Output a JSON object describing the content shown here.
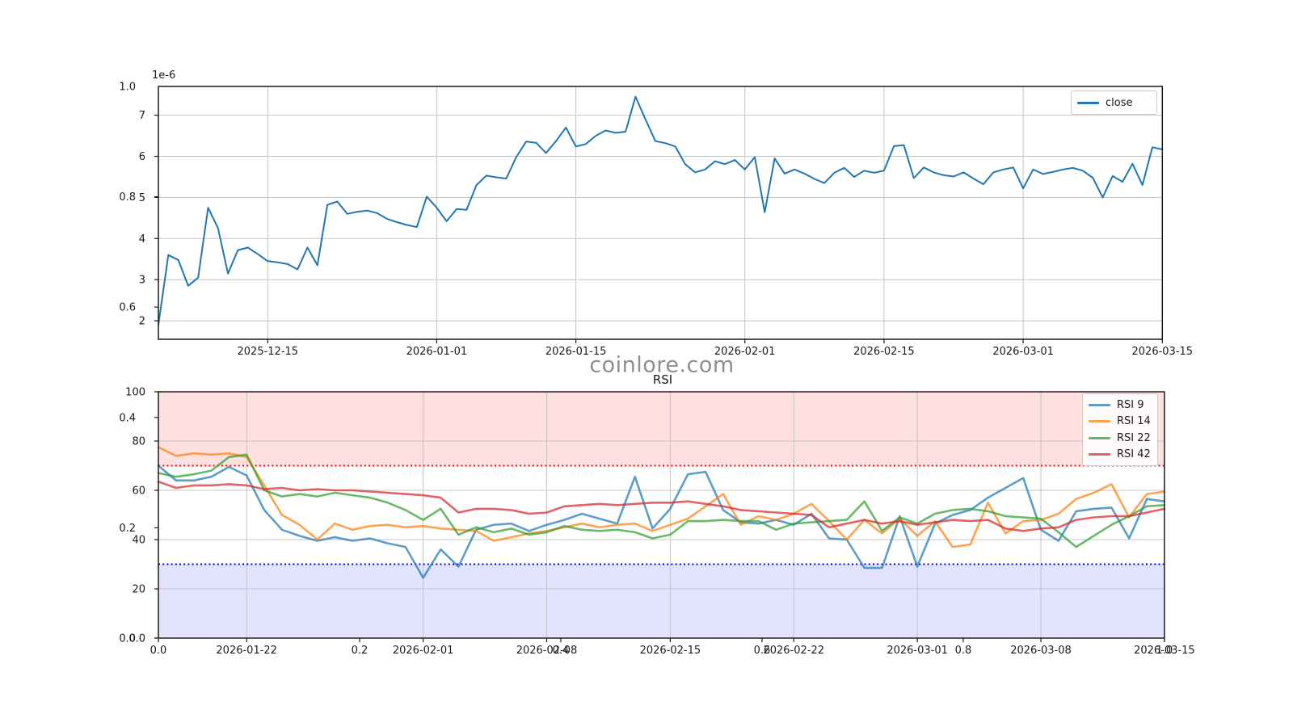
{
  "figure": {
    "watermark": "coinlore.com",
    "background": "#ffffff",
    "grid_color": "#c4c4c4",
    "spine_color": "#1a1a1a"
  },
  "overlay_axis": {
    "x_tick_labels": [
      "0.0",
      "0.2",
      "0.4",
      "0.6",
      "0.8",
      "1.0"
    ],
    "y_tick_labels": [
      "1.0",
      "0.8",
      "0.6",
      "0.4",
      "0.2",
      "0.0"
    ]
  },
  "chart_data": [
    {
      "type": "line",
      "name": "price",
      "title": "",
      "offset_text": "1e-6",
      "legend_position": "upper right",
      "grid": true,
      "x_start_date": "2025-12-04",
      "x_tick_labels": [
        "2025-12-15",
        "2026-01-01",
        "2026-01-15",
        "2026-02-01",
        "2026-02-15",
        "2026-03-01",
        "2026-03-15"
      ],
      "x_tick_days": [
        11,
        28,
        42,
        59,
        73,
        87,
        101
      ],
      "yticks": [
        2,
        3,
        4,
        5,
        6,
        7
      ],
      "ytick_labels": [
        "2",
        "3",
        "4",
        "5",
        "6",
        "7"
      ],
      "ylim": [
        1.55,
        7.7
      ],
      "series": [
        {
          "name": "close",
          "color": "#1f77b4",
          "alpha": 1,
          "width": 2,
          "values": [
            1.9,
            3.6,
            3.48,
            2.85,
            3.05,
            4.75,
            4.25,
            3.15,
            3.72,
            3.78,
            3.62,
            3.45,
            3.42,
            3.38,
            3.25,
            3.78,
            3.35,
            4.82,
            4.9,
            4.6,
            4.65,
            4.68,
            4.62,
            4.48,
            4.4,
            4.33,
            4.28,
            5.02,
            4.75,
            4.42,
            4.72,
            4.7,
            5.3,
            5.53,
            5.49,
            5.46,
            5.98,
            6.36,
            6.33,
            6.08,
            6.37,
            6.7,
            6.24,
            6.3,
            6.5,
            6.63,
            6.57,
            6.6,
            7.45,
            6.9,
            6.37,
            6.32,
            6.24,
            5.81,
            5.61,
            5.68,
            5.88,
            5.81,
            5.91,
            5.68,
            5.98,
            4.64,
            5.95,
            5.58,
            5.68,
            5.58,
            5.45,
            5.35,
            5.6,
            5.72,
            5.5,
            5.65,
            5.6,
            5.65,
            6.25,
            6.27,
            5.47,
            5.73,
            5.61,
            5.54,
            5.51,
            5.61,
            5.46,
            5.32,
            5.61,
            5.68,
            5.73,
            5.22,
            5.68,
            5.57,
            5.62,
            5.68,
            5.72,
            5.65,
            5.48,
            5.0,
            5.52,
            5.38,
            5.82,
            5.3,
            6.22,
            6.17
          ]
        }
      ]
    },
    {
      "type": "line",
      "name": "rsi",
      "title": "RSI",
      "legend_position": "upper right",
      "grid": true,
      "x_start_date": "2026-01-17",
      "x_tick_labels": [
        "2026-01-22",
        "2026-02-01",
        "2026-02-08",
        "2026-02-15",
        "2026-02-22",
        "2026-03-01",
        "2026-03-08",
        "2026-03-15"
      ],
      "x_tick_days": [
        5,
        15,
        22,
        29,
        36,
        43,
        50,
        57
      ],
      "yticks": [
        0,
        20,
        40,
        60,
        80,
        100
      ],
      "ytick_labels": [
        "0.0",
        "20",
        "40",
        "60",
        "80",
        "100"
      ],
      "ylim": [
        0,
        100
      ],
      "overbought_level": 70,
      "oversold_level": 30,
      "overbought_band_color": "rgba(255,0,0,0.12)",
      "oversold_band_color": "rgba(0,0,255,0.11)",
      "overbought_line_color": "#ff0000",
      "oversold_line_color": "#0000ff",
      "series": [
        {
          "name": "RSI 9",
          "color": "#1f77b4",
          "alpha": 0.72,
          "width": 2.6,
          "values": [
            70,
            64,
            64,
            65.5,
            69.5,
            66,
            52,
            44,
            41.5,
            39.5,
            41,
            39.5,
            40.5,
            38.5,
            37,
            24.5,
            36,
            29,
            44,
            46,
            46.5,
            43.5,
            46,
            48,
            50.5,
            48.5,
            46.5,
            65.5,
            44.5,
            52.5,
            66.5,
            67.5,
            52,
            47,
            46.5,
            48,
            46,
            50.5,
            40.5,
            40,
            28.5,
            28.5,
            49.5,
            29,
            46.5,
            50,
            52,
            57,
            61,
            65,
            44,
            39.5,
            51.5,
            52.5,
            53,
            40.5,
            56.5,
            55.5
          ]
        },
        {
          "name": "RSI 14",
          "color": "#ff7f0e",
          "alpha": 0.72,
          "width": 2.6,
          "values": [
            77.5,
            74,
            75,
            74.5,
            75,
            73.5,
            62,
            50,
            46,
            40,
            46.5,
            44,
            45.5,
            46,
            45,
            45.5,
            44.5,
            44,
            43.5,
            39.5,
            41,
            42.5,
            43.5,
            45,
            46.5,
            45,
            46,
            46.5,
            43.5,
            46,
            48.5,
            53.5,
            58.5,
            46,
            49.5,
            48,
            50.5,
            54.5,
            47.5,
            40,
            48,
            42.5,
            48.5,
            41.5,
            47.5,
            37,
            38,
            55,
            42.5,
            47.5,
            48,
            50.5,
            56.5,
            59,
            62.5,
            49,
            58.5,
            59.5
          ]
        },
        {
          "name": "RSI 22",
          "color": "#2ca02c",
          "alpha": 0.72,
          "width": 2.6,
          "values": [
            67,
            65.5,
            66.5,
            68,
            73.5,
            74.5,
            60,
            57.5,
            58.5,
            57.5,
            59,
            58,
            57,
            55,
            52,
            48,
            52.5,
            42,
            45,
            43,
            44.5,
            42,
            43,
            45.5,
            44,
            43.5,
            44,
            43,
            40.5,
            42,
            47.5,
            47.5,
            48,
            47.5,
            47.5,
            44,
            46.5,
            47,
            47.5,
            48,
            55.5,
            43.5,
            49,
            46.5,
            50.5,
            52,
            52.5,
            51.5,
            49.5,
            49,
            48.5,
            43,
            37,
            41.5,
            46,
            49.5,
            53.5,
            54
          ]
        },
        {
          "name": "RSI 42",
          "color": "#d62728",
          "alpha": 0.72,
          "width": 2.6,
          "values": [
            63.5,
            61,
            62,
            62,
            62.5,
            62,
            60.5,
            61,
            60,
            60.5,
            60,
            60,
            59.5,
            59,
            58.5,
            58,
            57,
            51,
            52.5,
            52.5,
            52,
            50.5,
            51,
            53.5,
            54,
            54.5,
            54,
            54.5,
            55,
            55,
            55.5,
            54.5,
            53.5,
            52,
            51.5,
            51,
            50.5,
            50,
            45,
            46.5,
            48,
            46.5,
            47.5,
            46,
            47,
            48,
            47.5,
            48,
            44.5,
            43.5,
            44.5,
            45,
            48,
            49,
            49.5,
            49.5,
            51,
            52.5
          ]
        }
      ]
    }
  ]
}
